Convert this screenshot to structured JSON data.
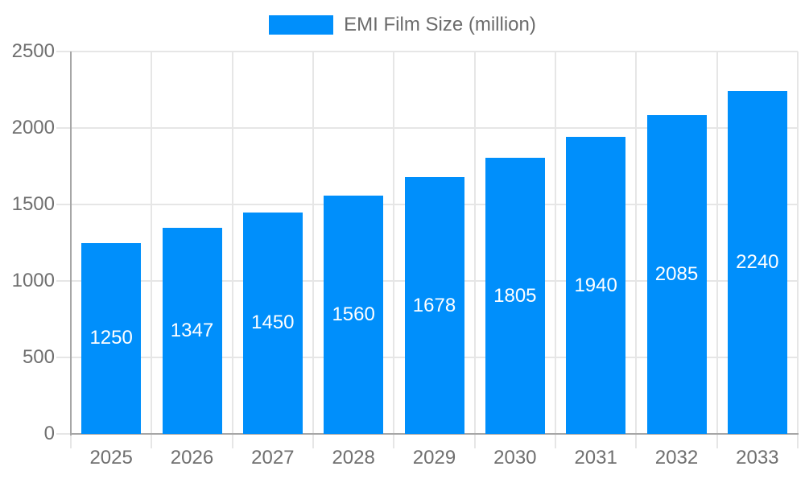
{
  "chart_data": {
    "type": "bar",
    "legend": {
      "label": "EMI Film Size (million)",
      "position": "top"
    },
    "categories": [
      "2025",
      "2026",
      "2027",
      "2028",
      "2029",
      "2030",
      "2031",
      "2032",
      "2033"
    ],
    "series": [
      {
        "name": "EMI Film Size (million)",
        "values": [
          1250,
          1347,
          1450,
          1560,
          1678,
          1805,
          1940,
          2085,
          2240
        ]
      }
    ],
    "value_labels_shown": true,
    "xlabel": "",
    "ylabel": "",
    "ylim": [
      0,
      2500
    ],
    "yticks": [
      0,
      500,
      1000,
      1500,
      2000,
      2500
    ],
    "grid": true,
    "colors": {
      "bar": "#008FFB",
      "gridline": "#e6e6e6",
      "axis": "#a6a6a6",
      "tick_text": "#6f6f6f",
      "legend_text": "#6b6b6b",
      "bar_value_text": "#ffffff",
      "background": "#ffffff"
    }
  }
}
